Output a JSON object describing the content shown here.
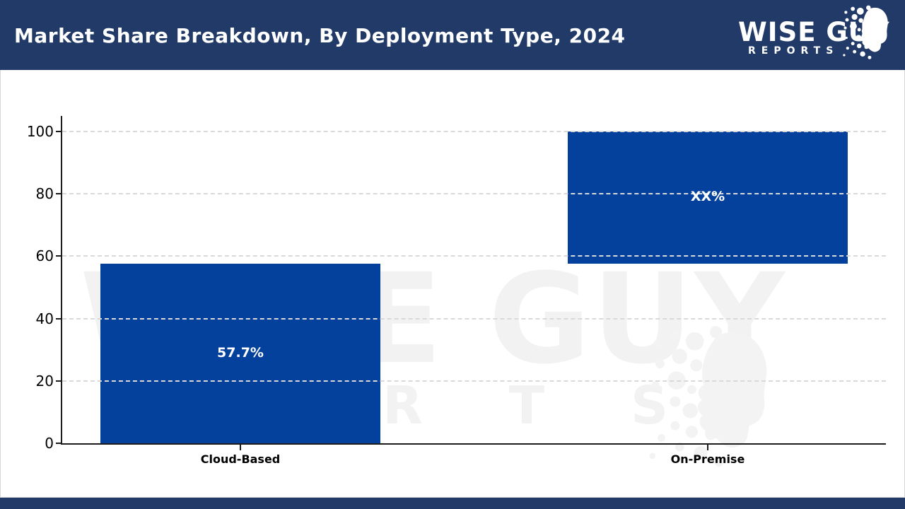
{
  "header": {
    "title": "Market Share Breakdown, By Deployment Type, 2024",
    "logo": {
      "line1": "WISE GUY",
      "line2": "REPORTS"
    }
  },
  "chart_data": {
    "type": "bar",
    "title": "Market Share Breakdown, By Deployment Type, 2024",
    "categories": [
      "Cloud-Based",
      "On-Premise"
    ],
    "bars": [
      {
        "category": "Cloud-Based",
        "from": 0,
        "to": 57.7,
        "value_label": "57.7%"
      },
      {
        "category": "On-Premise",
        "from": 57.7,
        "to": 100,
        "value_label": "XX%"
      }
    ],
    "yticks": [
      0,
      20,
      40,
      60,
      80,
      100
    ],
    "ylim": [
      0,
      105
    ],
    "grid": "horizontal-dashed",
    "legend": "none",
    "xlabel": "",
    "ylabel": "",
    "watermark": {
      "big_text": "WISE GUY",
      "sub_text": "R T S"
    }
  },
  "colors": {
    "header_bg": "#213a68",
    "footer_bg": "#213a68",
    "bar": "#04419c",
    "grid": "#d9d9d9",
    "axis": "#1c1c1c",
    "watermark": "#f2f2f2"
  }
}
